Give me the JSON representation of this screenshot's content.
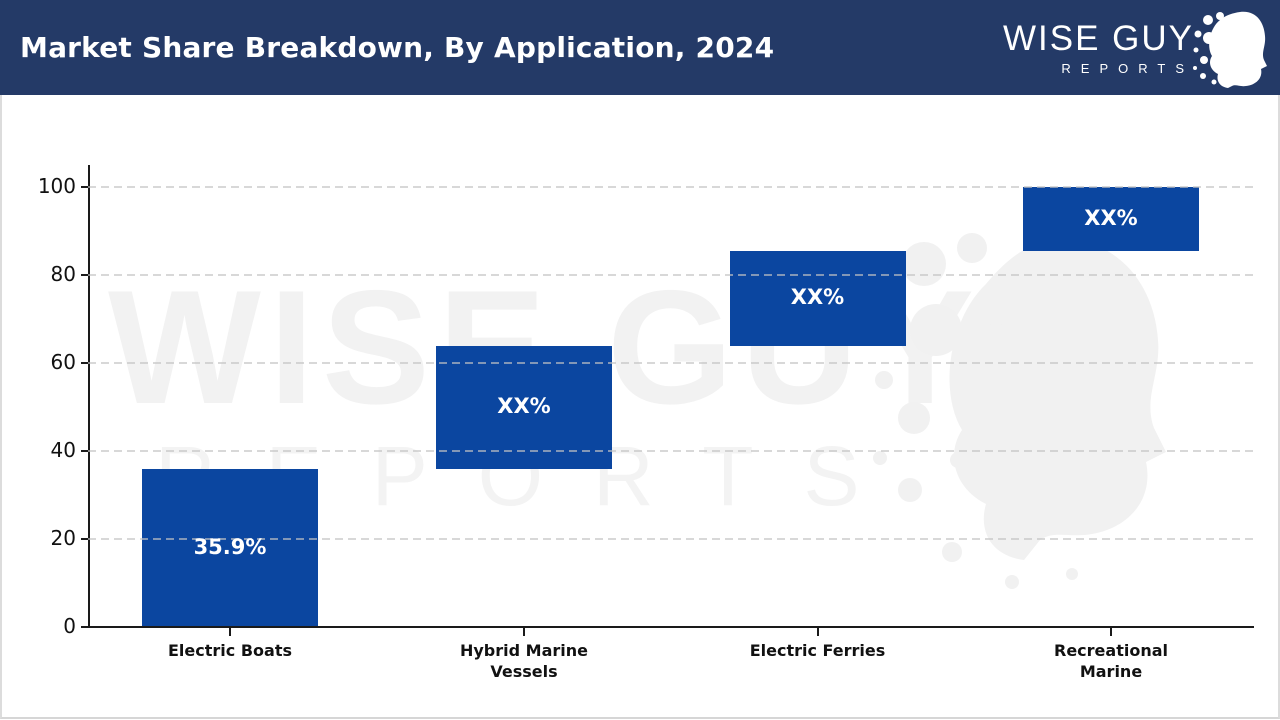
{
  "header": {
    "title": "Market Share Breakdown, By Application, 2024",
    "bg_color": "#243A67",
    "logo": {
      "line1": "WISE GUY",
      "line2": "REPORTS"
    }
  },
  "watermark": {
    "line1": "WISE GUY",
    "line2": "REPORTS"
  },
  "chart_data": {
    "type": "bar",
    "subtype": "waterfall",
    "title": "Market Share Breakdown, By Application, 2024",
    "xlabel": "",
    "ylabel": "",
    "ylim": [
      0,
      100
    ],
    "yticks": [
      0,
      20,
      40,
      60,
      80,
      100
    ],
    "grid": "horizontal dashed, drawn over bars",
    "legend": "none",
    "bar_color": "#0B46A0",
    "bar_label_color": "#FFFFFF",
    "categories": [
      "Electric Boats",
      "Hybrid Marine Vessels",
      "Electric Ferries",
      "Recreational Marine"
    ],
    "category_label_lines": [
      [
        "Electric Boats"
      ],
      [
        "Hybrid Marine",
        "Vessels"
      ],
      [
        "Electric Ferries"
      ],
      [
        "Recreational",
        "Marine"
      ]
    ],
    "segments": [
      {
        "category": "Electric Boats",
        "start": 0,
        "end": 35.9,
        "label": "35.9%"
      },
      {
        "category": "Hybrid Marine Vessels",
        "start": 35.9,
        "end": 63.8,
        "label": "XX%"
      },
      {
        "category": "Electric Ferries",
        "start": 63.8,
        "end": 85.4,
        "label": "XX%"
      },
      {
        "category": "Recreational Marine",
        "start": 85.4,
        "end": 100,
        "label": "XX%"
      }
    ]
  }
}
